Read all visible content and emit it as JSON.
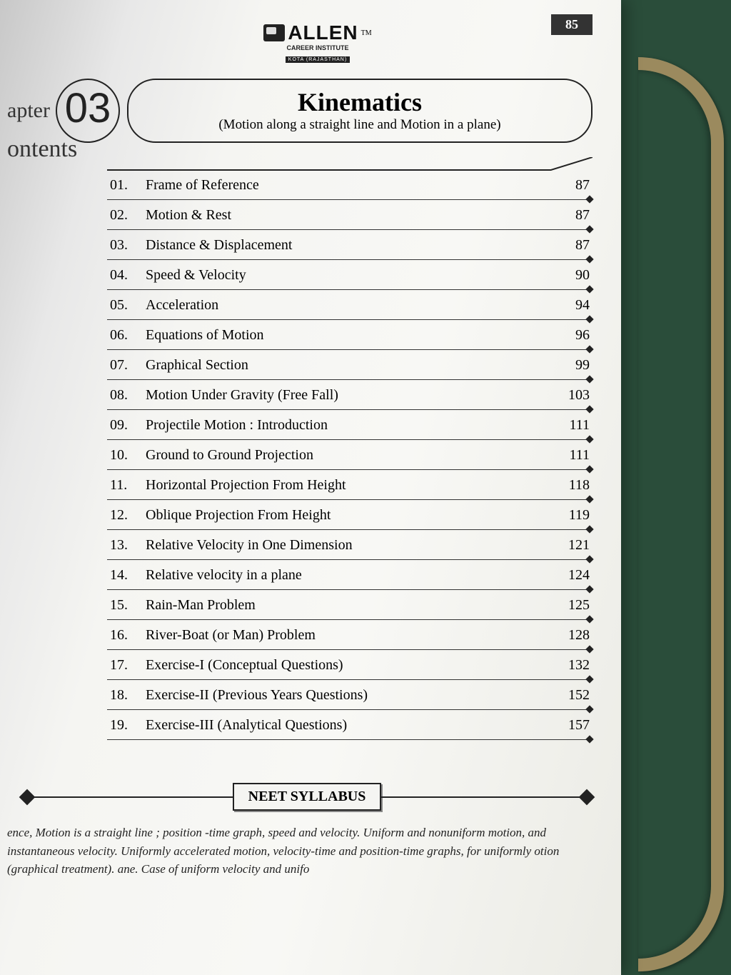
{
  "page_number": "85",
  "logo": {
    "name": "ALLEN",
    "tm": "TM",
    "sub1": "CAREER INSTITUTE",
    "sub2": "KOTA (RAJASTHAN)"
  },
  "chapter_label": "apter",
  "chapter_number": "03",
  "title": "Kinematics",
  "subtitle": "(Motion along a straight line and Motion in a plane)",
  "contents_label": "ontents",
  "toc": [
    {
      "num": "01.",
      "title": "Frame of Reference",
      "page": "87"
    },
    {
      "num": "02.",
      "title": "Motion & Rest",
      "page": "87"
    },
    {
      "num": "03.",
      "title": "Distance & Displacement",
      "page": "87"
    },
    {
      "num": "04.",
      "title": "Speed & Velocity",
      "page": "90"
    },
    {
      "num": "05.",
      "title": "Acceleration",
      "page": "94"
    },
    {
      "num": "06.",
      "title": "Equations of Motion",
      "page": "96"
    },
    {
      "num": "07.",
      "title": "Graphical Section",
      "page": "99"
    },
    {
      "num": "08.",
      "title": "Motion Under Gravity (Free Fall)",
      "page": "103"
    },
    {
      "num": "09.",
      "title": "Projectile Motion : Introduction",
      "page": "111"
    },
    {
      "num": "10.",
      "title": "Ground to Ground Projection",
      "page": "111"
    },
    {
      "num": "11.",
      "title": "Horizontal Projection From Height",
      "page": "118"
    },
    {
      "num": "12.",
      "title": "Oblique Projection From Height",
      "page": "119"
    },
    {
      "num": "13.",
      "title": "Relative Velocity in One Dimension",
      "page": "121"
    },
    {
      "num": "14.",
      "title": "Relative velocity in a plane",
      "page": "124"
    },
    {
      "num": "15.",
      "title": "Rain-Man Problem",
      "page": "125"
    },
    {
      "num": "16.",
      "title": "River-Boat (or Man) Problem",
      "page": "128"
    },
    {
      "num": "17.",
      "title": "Exercise-I (Conceptual Questions)",
      "page": "132"
    },
    {
      "num": "18.",
      "title": "Exercise-II (Previous Years Questions)",
      "page": "152"
    },
    {
      "num": "19.",
      "title": "Exercise-III (Analytical Questions)",
      "page": "157"
    }
  ],
  "syllabus_label": "NEET SYLLABUS",
  "syllabus_text": "ence, Motion is a straight line ; position -time graph, speed and velocity. Uniform and nonuniform motion, and instantaneous velocity. Uniformly accelerated motion, velocity-time and position-time graphs, for uniformly otion (graphical treatment). ane. Case of uniform velocity and unifo"
}
